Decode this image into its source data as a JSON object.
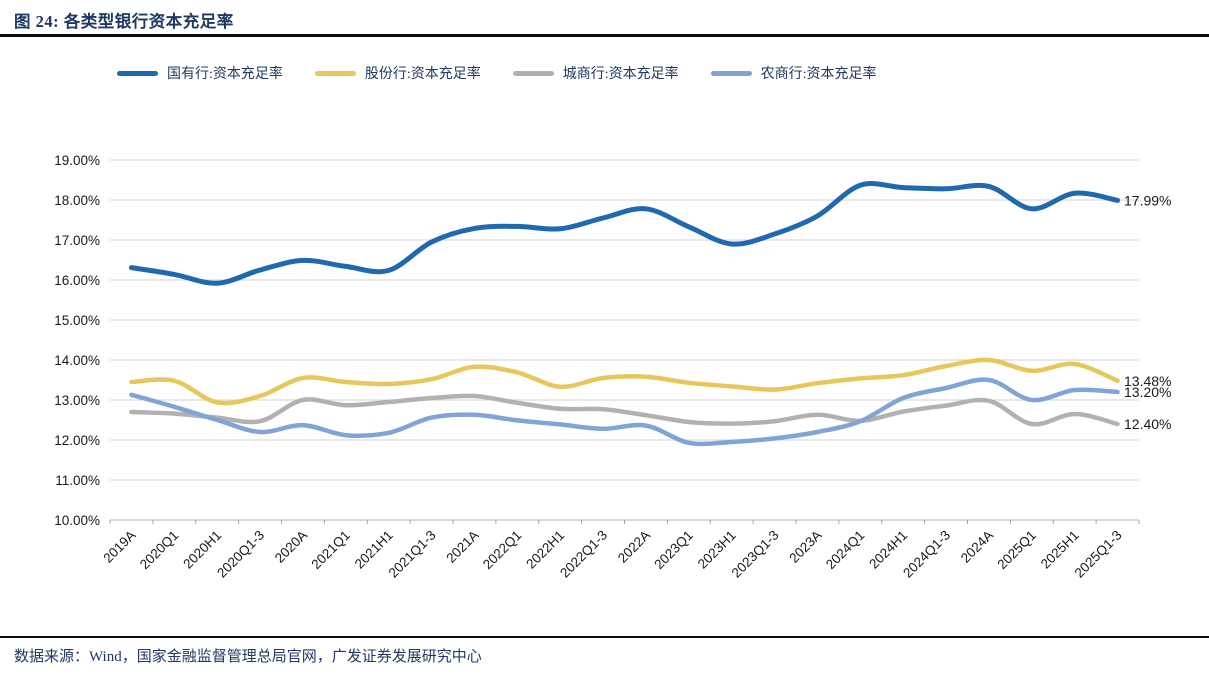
{
  "page": {
    "title": "图 24: 各类型银行资本充足率",
    "source": "数据来源：Wind，国家金融监督管理总局官网，广发证券发展研究中心"
  },
  "legend": {
    "items": [
      {
        "label": "国有行:资本充足率",
        "color": "#2169ae"
      },
      {
        "label": "股份行:资本充足率",
        "color": "#e7c75c"
      },
      {
        "label": "城商行:资本充足率",
        "color": "#b1b1b1"
      },
      {
        "label": "农商行:资本充足率",
        "color": "#81a3d6"
      }
    ]
  },
  "chart_data": {
    "type": "line",
    "smooth": true,
    "grid": true,
    "legend_position": "top",
    "ylim": [
      10,
      19
    ],
    "y_ticks": [
      "19.00%",
      "18.00%",
      "17.00%",
      "16.00%",
      "15.00%",
      "14.00%",
      "13.00%",
      "12.00%",
      "11.00%",
      "10.00%"
    ],
    "categories": [
      "2019A",
      "2020Q1",
      "2020H1",
      "2020Q1-3",
      "2020A",
      "2021Q1",
      "2021H1",
      "2021Q1-3",
      "2021A",
      "2022Q1",
      "2022H1",
      "2022Q1-3",
      "2022A",
      "2023Q1",
      "2023H1",
      "2023Q1-3",
      "2023A",
      "2024Q1",
      "2024H1",
      "2024Q1-3",
      "2024A",
      "2025Q1",
      "2025H1",
      "2025Q1-3"
    ],
    "series": [
      {
        "key": "guoyouhang",
        "name": "国有行:资本充足率",
        "color": "#2169ae",
        "width": 5,
        "values": [
          16.31,
          16.14,
          15.92,
          16.25,
          16.49,
          16.34,
          16.24,
          16.95,
          17.29,
          17.34,
          17.28,
          17.55,
          17.78,
          17.33,
          16.9,
          17.15,
          17.6,
          18.37,
          18.31,
          18.28,
          18.34,
          17.78,
          18.17,
          17.99
        ],
        "end_label": "17.99%"
      },
      {
        "key": "gufenhang",
        "name": "股份行:资本充足率",
        "color": "#e7c75c",
        "width": 4.5,
        "values": [
          13.45,
          13.48,
          12.94,
          13.1,
          13.55,
          13.45,
          13.4,
          13.52,
          13.83,
          13.69,
          13.33,
          13.55,
          13.58,
          13.43,
          13.34,
          13.26,
          13.42,
          13.54,
          13.62,
          13.85,
          14.0,
          13.73,
          13.9,
          13.48
        ],
        "end_label": "13.48%"
      },
      {
        "key": "chengshanghang",
        "name": "城商行:资本充足率",
        "color": "#b1b1b1",
        "width": 4.5,
        "values": [
          12.7,
          12.66,
          12.56,
          12.47,
          13.0,
          12.87,
          12.95,
          13.05,
          13.1,
          12.93,
          12.78,
          12.77,
          12.62,
          12.45,
          12.41,
          12.47,
          12.63,
          12.48,
          12.71,
          12.86,
          12.98,
          12.4,
          12.65,
          12.4
        ],
        "end_label": "12.40%"
      },
      {
        "key": "nongshanghang",
        "name": "农商行:资本充足率",
        "color": "#81a3d6",
        "width": 4.5,
        "values": [
          13.13,
          12.83,
          12.5,
          12.2,
          12.37,
          12.12,
          12.18,
          12.56,
          12.63,
          12.49,
          12.39,
          12.28,
          12.36,
          11.93,
          11.95,
          12.04,
          12.2,
          12.47,
          13.05,
          13.3,
          13.5,
          13.0,
          13.25,
          13.2
        ],
        "end_label": "13.20%"
      }
    ]
  }
}
